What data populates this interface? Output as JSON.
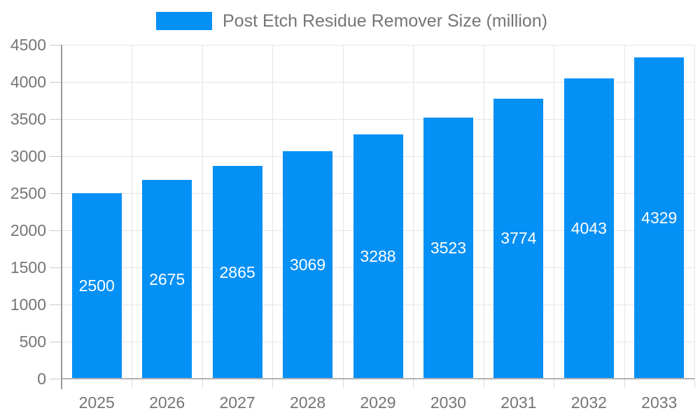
{
  "chart_data": {
    "type": "bar",
    "title": "Post Etch Residue Remover Size (million)",
    "legend": {
      "label": "Post Etch Residue Remover Size (million)",
      "position": "top"
    },
    "categories": [
      "2025",
      "2026",
      "2027",
      "2028",
      "2029",
      "2030",
      "2031",
      "2032",
      "2033"
    ],
    "values": [
      2500,
      2675,
      2865,
      3069,
      3288,
      3523,
      3774,
      4043,
      4329
    ],
    "xlabel": "",
    "ylabel": "",
    "ylim": [
      0,
      4500
    ],
    "y_ticks": [
      0,
      500,
      1000,
      1500,
      2000,
      2500,
      3000,
      3500,
      4000,
      4500
    ],
    "grid": "horizontal and vertical light gray gridlines",
    "bar_labels": "values shown in white, centered inside bars",
    "colors": {
      "bar": "#0590f5",
      "grid": "#e6e6e6",
      "axis_y": "#9a9a9a",
      "axis_x": "#b3b3b3",
      "tick": "#cccccc",
      "text": "#757575",
      "bar_label": "#ffffff",
      "background": "#ffffff"
    }
  }
}
